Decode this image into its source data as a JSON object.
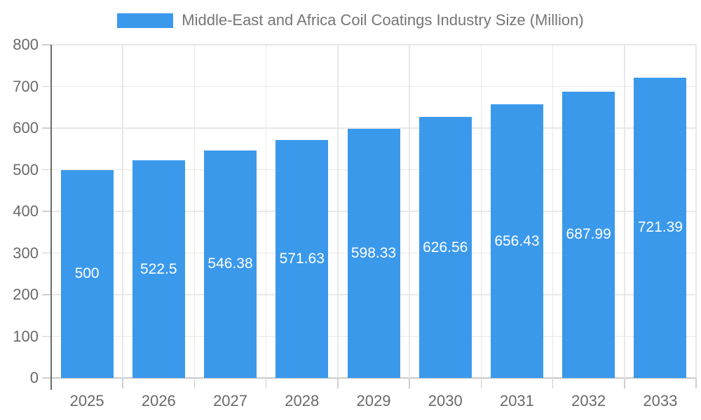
{
  "legend": {
    "label": "Middle-East and Africa Coil Coatings Industry Size (Million)"
  },
  "colors": {
    "bar": "#3B99EC",
    "axis_line": "#6b6b6b",
    "gridline": "#e8e8e8",
    "zero_line": "#c9c9c9",
    "tick": "#cfcfcf",
    "tick_label": "#696969",
    "bar_label": "#ffffff",
    "legend_text": "#757575",
    "background": "#ffffff"
  },
  "chart_data": {
    "type": "bar",
    "title": "Middle-East and Africa Coil Coatings Industry Size (Million)",
    "categories": [
      "2025",
      "2026",
      "2027",
      "2028",
      "2029",
      "2030",
      "2031",
      "2032",
      "2033"
    ],
    "values": [
      500,
      522.5,
      546.38,
      571.63,
      598.33,
      626.56,
      656.43,
      687.99,
      721.39
    ],
    "value_labels": [
      "500",
      "522.5",
      "546.38",
      "571.63",
      "598.33",
      "626.56",
      "656.43",
      "687.99",
      "721.39"
    ],
    "series_name": "Middle-East and Africa Coil Coatings Industry Size (Million)",
    "xlabel": "",
    "ylabel": "",
    "ylim": [
      0,
      800
    ],
    "ytick_step": 100,
    "ytick_labels": [
      "0",
      "100",
      "200",
      "300",
      "400",
      "500",
      "600",
      "700",
      "800"
    ],
    "grid": true,
    "legend_position": "top",
    "value_label_position": "middle-of-bar",
    "value_label_color": "white"
  }
}
